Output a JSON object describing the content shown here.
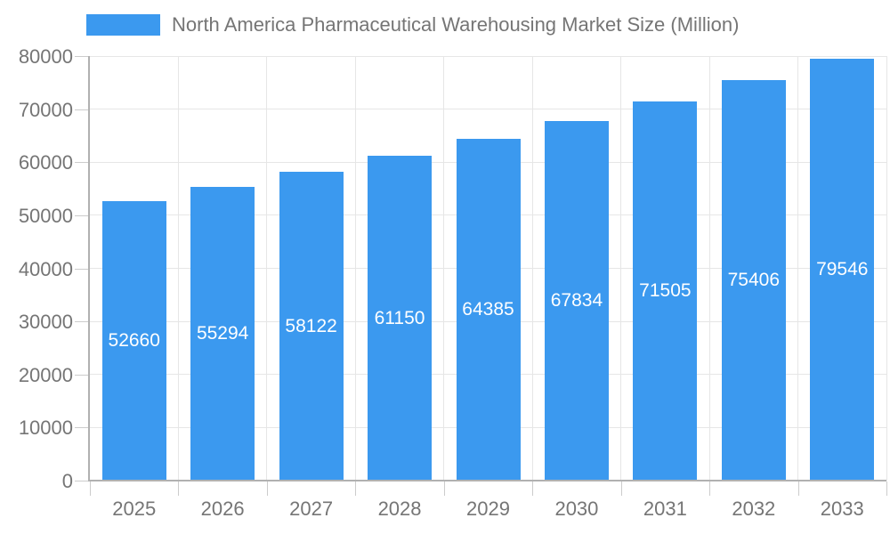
{
  "chart_data": {
    "type": "bar",
    "title": "North America Pharmaceutical Warehousing Market Size (Million)",
    "categories": [
      "2025",
      "2026",
      "2027",
      "2028",
      "2029",
      "2030",
      "2031",
      "2032",
      "2033"
    ],
    "values": [
      52660,
      55294,
      58122,
      61150,
      64385,
      67834,
      71505,
      75406,
      79546
    ],
    "series_name": "North America Pharmaceutical Warehousing Market Size (Million)",
    "xlabel": "",
    "ylabel": "",
    "ylim": [
      0,
      80000
    ],
    "y_ticks": [
      0,
      10000,
      20000,
      30000,
      40000,
      50000,
      60000,
      70000,
      80000
    ],
    "grid": true,
    "legend_position": "top",
    "value_labels": "inside-middle"
  },
  "colors": {
    "bar": "#3B99EF",
    "bar_label": "#ffffff",
    "axis_text": "#757575",
    "axis_line": "#b1b1b1",
    "gridline": "#e6e6e6",
    "tick": "#cccccc",
    "background": "#ffffff"
  }
}
